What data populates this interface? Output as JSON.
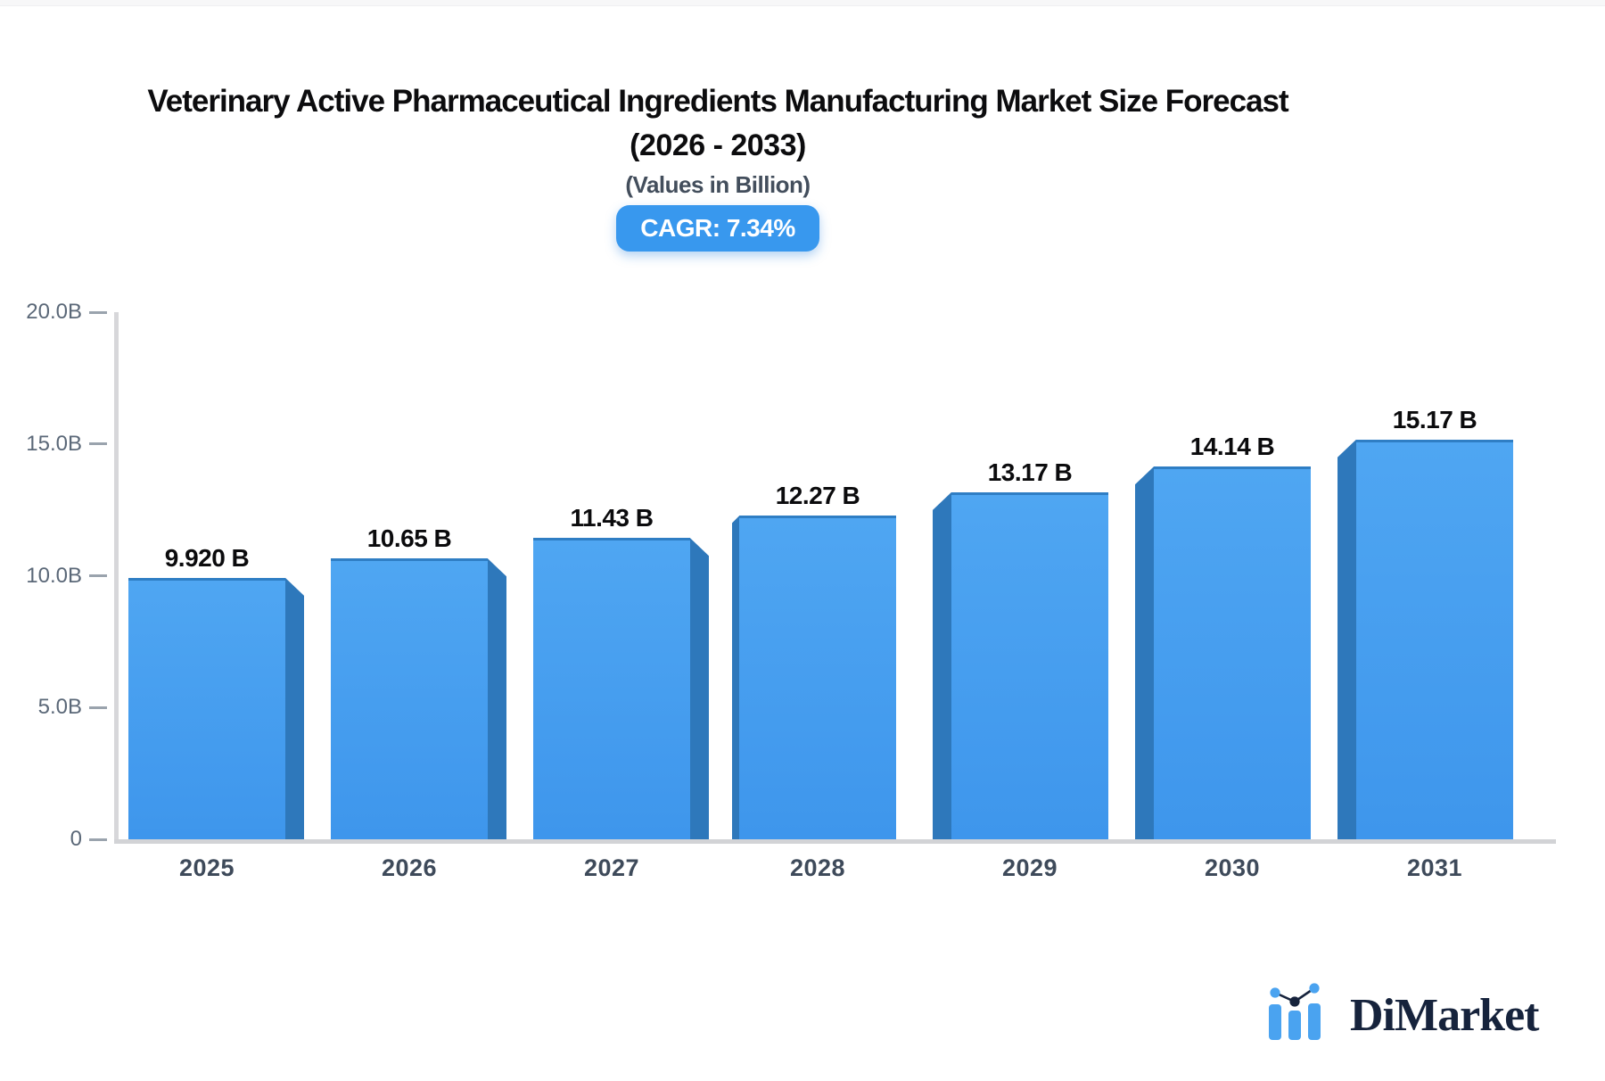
{
  "chart_data": {
    "type": "bar",
    "title_line1": "Veterinary Active Pharmaceutical Ingredients Manufacturing Market Size Forecast",
    "title_line2": "(2026 - 2033)",
    "subtitle": "(Values in Billion)",
    "cagr_badge": "CAGR: 7.34%",
    "categories": [
      "2025",
      "2026",
      "2027",
      "2028",
      "2029",
      "2030",
      "2031"
    ],
    "values": [
      9.92,
      10.65,
      11.43,
      12.27,
      13.17,
      14.14,
      15.17
    ],
    "value_labels": [
      "9.920 B",
      "10.65 B",
      "11.43 B",
      "12.27 B",
      "13.17 B",
      "14.14 B",
      "15.17 B"
    ],
    "xlabel": "",
    "ylabel": "",
    "ylim": [
      0,
      20
    ],
    "yticks": [
      {
        "label": "20.0B",
        "value": 20
      },
      {
        "label": "15.0B",
        "value": 15
      },
      {
        "label": "10.0B",
        "value": 10
      },
      {
        "label": "5.0B",
        "value": 5
      },
      {
        "label": "0",
        "value": 0
      }
    ],
    "grid": "off",
    "legend": "none",
    "bar_style": "3d-center-perspective"
  },
  "logo": {
    "brand": "DiMarket"
  },
  "colors": {
    "bar_face_top": "#4fa6f2",
    "bar_face_bottom": "#3e96ec",
    "bar_side": "#2e78bb",
    "bar_top_edge": "#2f7ec4",
    "badge_bg": "#3898ee",
    "badge_text": "#ffffff",
    "logo_blue": "#4aa3f0",
    "logo_navy": "#16233c"
  }
}
